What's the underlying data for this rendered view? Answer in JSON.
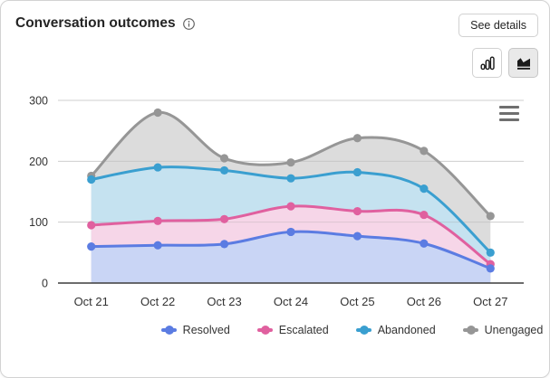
{
  "card": {
    "title": "Conversation outcomes",
    "see_details_label": "See details"
  },
  "toolbar": {
    "bar_chart_button": "bar chart view",
    "area_chart_button": "area chart view",
    "selected": "area chart view"
  },
  "chart_data": {
    "type": "area",
    "title": "Conversation outcomes",
    "categories": [
      "Oct 21",
      "Oct 22",
      "Oct 23",
      "Oct 24",
      "Oct 25",
      "Oct 26",
      "Oct 27"
    ],
    "series": [
      {
        "name": "Resolved",
        "values": [
          60,
          62,
          64,
          84,
          77,
          65,
          24
        ],
        "line_color": "#5b7ce2",
        "fill_color": "#c9d5f5"
      },
      {
        "name": "Escalated",
        "values": [
          95,
          102,
          105,
          126,
          118,
          112,
          31
        ],
        "line_color": "#e0609f",
        "fill_color": "#f6d6e8"
      },
      {
        "name": "Abandoned",
        "values": [
          170,
          190,
          185,
          172,
          182,
          155,
          50
        ],
        "line_color": "#3a9fd0",
        "fill_color": "#c5e2f0"
      },
      {
        "name": "Unengaged",
        "values": [
          176,
          280,
          205,
          198,
          238,
          217,
          110
        ],
        "line_color": "#969696",
        "fill_color": "#dcdcdc"
      }
    ],
    "ylim": [
      0,
      300
    ],
    "yticks": [
      0,
      100,
      200,
      300
    ],
    "grid": true,
    "legend_position": "bottom",
    "axis_text_color": "#333333",
    "grid_color": "#e5e5e5",
    "baseline_color": "#3c3c3c"
  }
}
